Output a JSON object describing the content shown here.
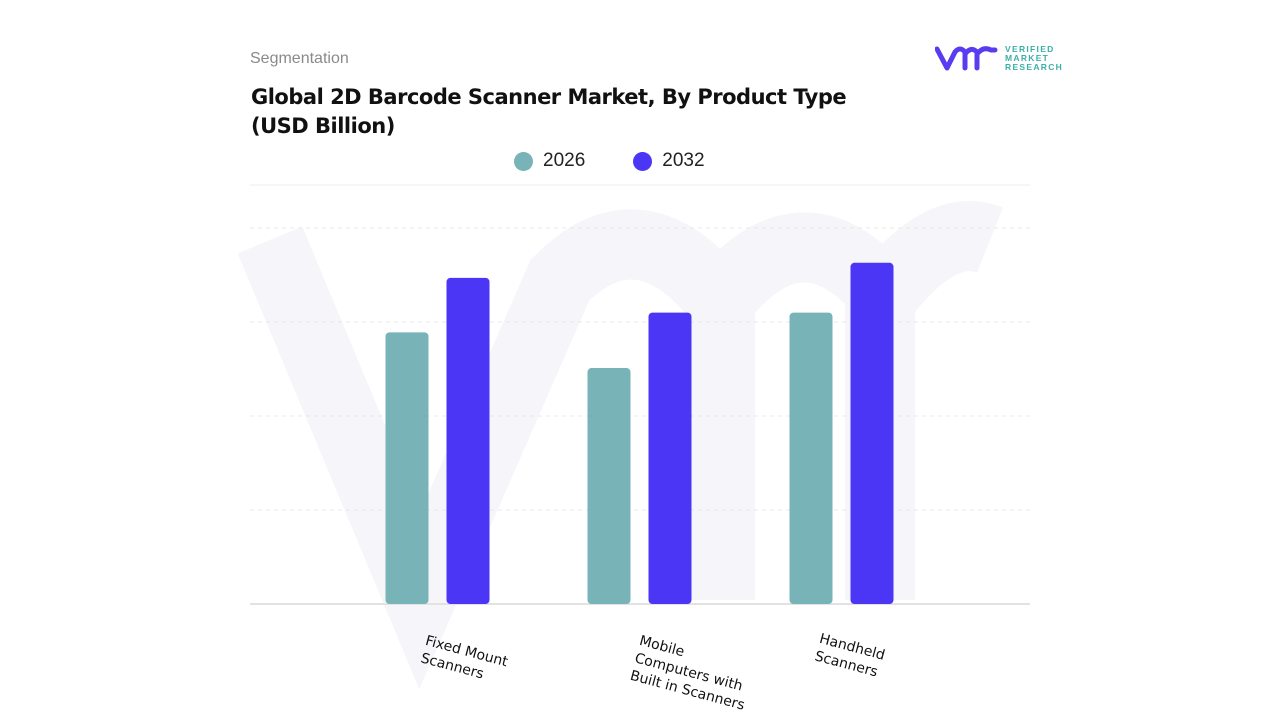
{
  "header": {
    "segment_label": "Segmentation",
    "title": "Global 2D Barcode Scanner Market, By Product Type (USD Billion)"
  },
  "logo": {
    "brand_lines": [
      "VERIFIED",
      "MARKET",
      "RESEARCH"
    ],
    "colors": {
      "mark": "#5a3cf0",
      "text": "#3bb0a6"
    }
  },
  "chart_data": {
    "type": "bar",
    "title": "Global 2D Barcode Scanner Market, By Product Type (USD Billion)",
    "categories": [
      "Fixed Mount\nScanners",
      "Mobile\nComputers with\nBuilt in Scanners",
      "Handheld\nScanners"
    ],
    "series": [
      {
        "name": "2026",
        "color": "#78b3b8",
        "values": [
          2.89,
          2.51,
          3.1
        ]
      },
      {
        "name": "2032",
        "color": "#4b36f5",
        "values": [
          3.47,
          3.1,
          3.63
        ]
      }
    ],
    "ylim": [
      0,
      4
    ],
    "y_ticks_labeled": false,
    "grid": true,
    "legend_position": "top-center",
    "xlabel": "",
    "ylabel": ""
  }
}
